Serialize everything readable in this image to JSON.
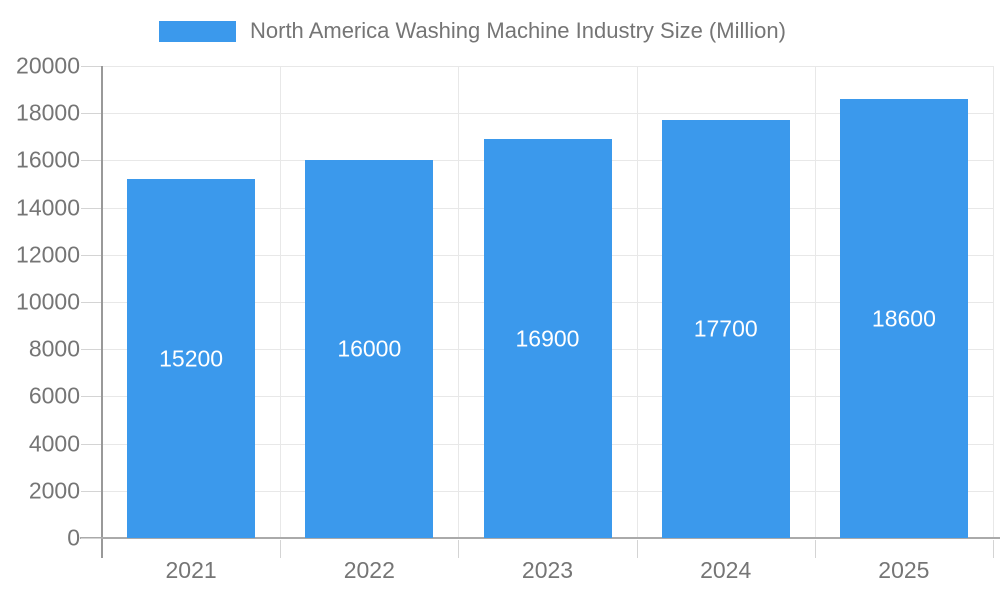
{
  "legend": {
    "label": "North America Washing Machine Industry Size (Million)"
  },
  "chart_data": {
    "type": "bar",
    "title": "North America Washing Machine Industry Size (Million)",
    "categories": [
      "2021",
      "2022",
      "2023",
      "2024",
      "2025"
    ],
    "series": [
      {
        "name": "North America Washing Machine Industry Size (Million)",
        "values": [
          15200,
          16000,
          16900,
          17700,
          18600
        ]
      }
    ],
    "bar_labels": [
      "15200",
      "16000",
      "16900",
      "17700",
      "18600"
    ],
    "xlabel": "",
    "ylabel": "",
    "ylim": [
      0,
      20000
    ],
    "y_ticks": [
      0,
      2000,
      4000,
      6000,
      8000,
      10000,
      12000,
      14000,
      16000,
      18000,
      20000
    ],
    "grid": "on",
    "legend_position": "top"
  },
  "colors": {
    "bar": "#3B99EC",
    "grid": "#e8e8e8",
    "y_axis": "#999999",
    "baseline": "#aaaaaa",
    "tick": "#d4d4d4",
    "text": "#757575",
    "bar_label": "#ffffff"
  }
}
